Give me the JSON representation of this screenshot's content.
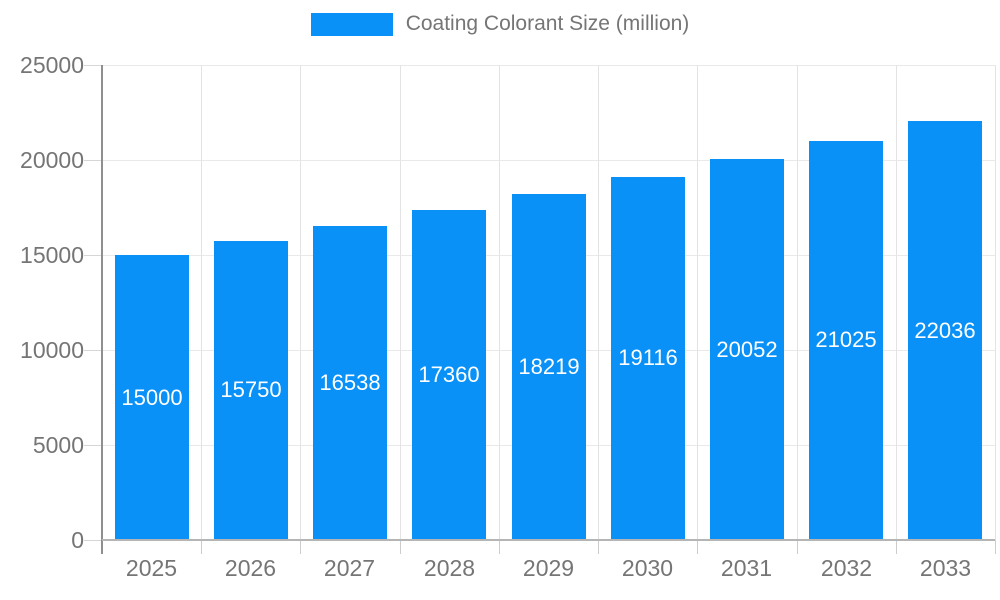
{
  "legend": {
    "label": "Coating Colorant Size (million)"
  },
  "chart_data": {
    "type": "bar",
    "title": "Coating Colorant Size (million)",
    "categories": [
      "2025",
      "2026",
      "2027",
      "2028",
      "2029",
      "2030",
      "2031",
      "2032",
      "2033"
    ],
    "series": [
      {
        "name": "Coating Colorant Size (million)",
        "values": [
          15000,
          15750,
          16538,
          17360,
          18219,
          19116,
          20052,
          21025,
          22036
        ]
      }
    ],
    "xlabel": "",
    "ylabel": "",
    "ylim": [
      0,
      25000
    ],
    "yticks": [
      0,
      5000,
      10000,
      15000,
      20000,
      25000
    ],
    "grid": true,
    "legend_position": "top",
    "bar_color": "#0991F8",
    "bar_label_color": "#FFFFFF",
    "axis_text_color": "#757575",
    "background_color": "#FFFFFF"
  }
}
